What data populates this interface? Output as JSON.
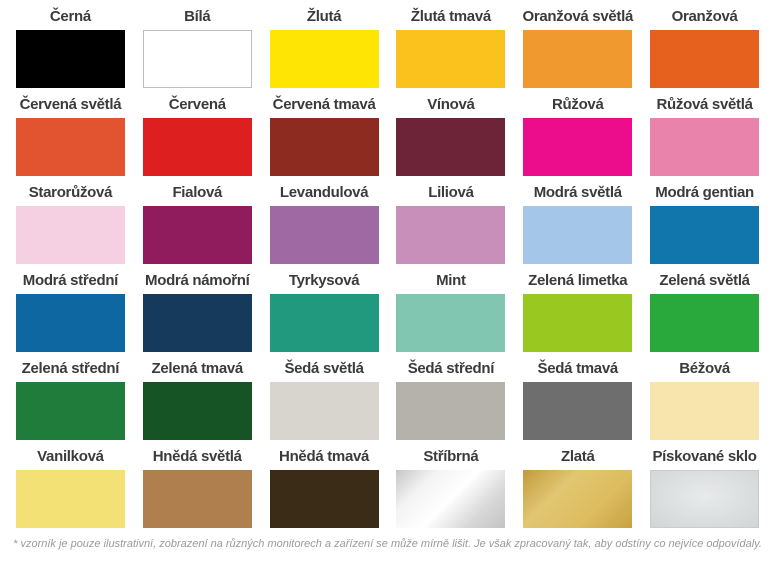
{
  "palette": {
    "rows": 6,
    "cols": 6,
    "swatches": [
      {
        "label": "Černá",
        "color": "#000000"
      },
      {
        "label": "Bílá",
        "color": "#ffffff",
        "border": "#bdbdbd"
      },
      {
        "label": "Žlutá",
        "color": "#ffe503"
      },
      {
        "label": "Žlutá tmavá",
        "color": "#fbc21d"
      },
      {
        "label": "Oranžová světlá",
        "color": "#f0992e"
      },
      {
        "label": "Oranžová",
        "color": "#e5611d"
      },
      {
        "label": "Červená světlá",
        "color": "#e25330"
      },
      {
        "label": "Červená",
        "color": "#de1f1f"
      },
      {
        "label": "Červená tmavá",
        "color": "#8e2b20"
      },
      {
        "label": "Vínová",
        "color": "#6d2438"
      },
      {
        "label": "Růžová",
        "color": "#eb0d8c"
      },
      {
        "label": "Růžová světlá",
        "color": "#e983ab"
      },
      {
        "label": "Starorůžová",
        "color": "#f5d0e3"
      },
      {
        "label": "Fialová",
        "color": "#901c5d"
      },
      {
        "label": "Levandulová",
        "color": "#9f6aa3"
      },
      {
        "label": "Liliová",
        "color": "#c78fba"
      },
      {
        "label": "Modrá světlá",
        "color": "#a3c6e9"
      },
      {
        "label": "Modrá gentian",
        "color": "#1076ab"
      },
      {
        "label": "Modrá střední",
        "color": "#0f67a1"
      },
      {
        "label": "Modrá námořní",
        "color": "#153a5b"
      },
      {
        "label": "Tyrkysová",
        "color": "#21997f"
      },
      {
        "label": "Mint",
        "color": "#81c6b1"
      },
      {
        "label": "Zelená limetka",
        "color": "#99c921"
      },
      {
        "label": "Zelená světlá",
        "color": "#29a83c"
      },
      {
        "label": "Zelená střední",
        "color": "#1f7c3b"
      },
      {
        "label": "Zelená tmavá",
        "color": "#165325"
      },
      {
        "label": "Šedá světlá",
        "color": "#d8d5ce"
      },
      {
        "label": "Šedá střední",
        "color": "#b4b2aa"
      },
      {
        "label": "Šedá tmavá",
        "color": "#6e6e6e"
      },
      {
        "label": "Béžová",
        "color": "#f8e5ae"
      },
      {
        "label": "Vanilková",
        "color": "#f3e175"
      },
      {
        "label": "Hnědá světlá",
        "color": "#af7f4d"
      },
      {
        "label": "Hnědá tmavá",
        "color": "#3b2c18"
      },
      {
        "label": "Stříbrná",
        "style": "diagonal",
        "colors": [
          "#c6c6c6",
          "#f3f3f3",
          "#ffffff",
          "#d9d9d9",
          "#c3c3c3"
        ]
      },
      {
        "label": "Zlatá",
        "style": "diagonal",
        "colors": [
          "#c19a3b",
          "#e2c672",
          "#dcbd5f",
          "#c7a243"
        ]
      },
      {
        "label": "Pískované sklo",
        "style": "radial",
        "colors": [
          "#e8eaeb",
          "#d2d5d6"
        ],
        "border": "#c9cccd"
      }
    ]
  },
  "footer": {
    "note": "* vzorník je pouze ilustrativní, zobrazení na různých monitorech a zařízení se může mírně lišit. Je však zpracovaný tak, aby odstíny co nejvíce odpovídaly."
  },
  "chart_data": {
    "type": "table",
    "title": "Vzorník barev",
    "columns": [
      "name",
      "color"
    ],
    "rows": [
      [
        "Černá",
        "#000000"
      ],
      [
        "Bílá",
        "#ffffff"
      ],
      [
        "Žlutá",
        "#ffe503"
      ],
      [
        "Žlutá tmavá",
        "#fbc21d"
      ],
      [
        "Oranžová světlá",
        "#f0992e"
      ],
      [
        "Oranžová",
        "#e5611d"
      ],
      [
        "Červená světlá",
        "#e25330"
      ],
      [
        "Červená",
        "#de1f1f"
      ],
      [
        "Červená tmavá",
        "#8e2b20"
      ],
      [
        "Vínová",
        "#6d2438"
      ],
      [
        "Růžová",
        "#eb0d8c"
      ],
      [
        "Růžová světlá",
        "#e983ab"
      ],
      [
        "Starorůžová",
        "#f5d0e3"
      ],
      [
        "Fialová",
        "#901c5d"
      ],
      [
        "Levandulová",
        "#9f6aa3"
      ],
      [
        "Liliová",
        "#c78fba"
      ],
      [
        "Modrá světlá",
        "#a3c6e9"
      ],
      [
        "Modrá gentian",
        "#1076ab"
      ],
      [
        "Modrá střední",
        "#0f67a1"
      ],
      [
        "Modrá námořní",
        "#153a5b"
      ],
      [
        "Tyrkysová",
        "#21997f"
      ],
      [
        "Mint",
        "#81c6b1"
      ],
      [
        "Zelená limetka",
        "#99c921"
      ],
      [
        "Zelená světlá",
        "#29a83c"
      ],
      [
        "Zelená střední",
        "#1f7c3b"
      ],
      [
        "Zelená tmavá",
        "#165325"
      ],
      [
        "Šedá světlá",
        "#d8d5ce"
      ],
      [
        "Šedá střední",
        "#b4b2aa"
      ],
      [
        "Šedá tmavá",
        "#6e6e6e"
      ],
      [
        "Béžová",
        "#f8e5ae"
      ],
      [
        "Vanilková",
        "#f3e175"
      ],
      [
        "Hnědá světlá",
        "#af7f4d"
      ],
      [
        "Hnědá tmavá",
        "#3b2c18"
      ],
      [
        "Stříbrná",
        "silver-metallic"
      ],
      [
        "Zlatá",
        "gold-metallic"
      ],
      [
        "Pískované sklo",
        "frosted-glass"
      ]
    ]
  }
}
